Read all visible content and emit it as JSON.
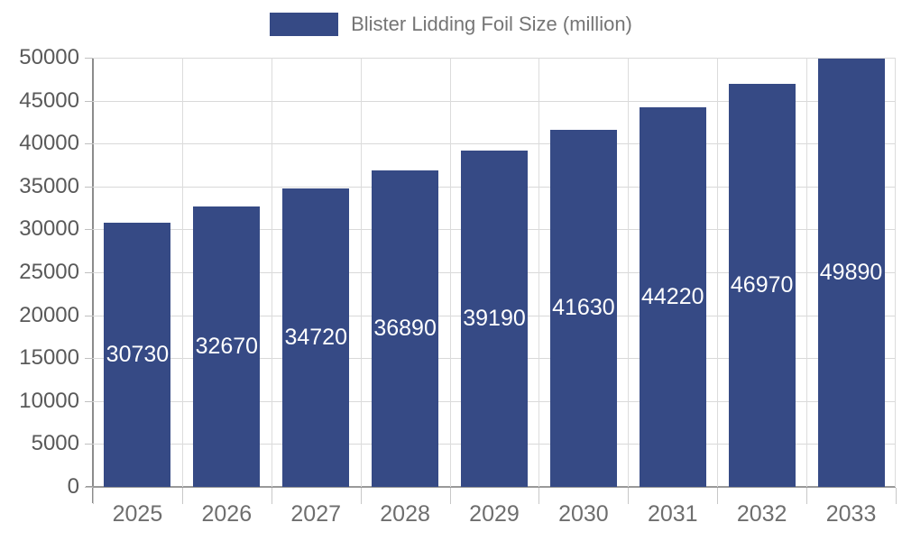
{
  "legend": {
    "label": "Blister Lidding Foil Size (million)"
  },
  "colors": {
    "bar": "#364A85",
    "value_label": "#ffffff",
    "grid": "#d9d9d9",
    "axis": "#8c8c8c",
    "tick_label": "#595959",
    "legend_text": "#757575",
    "background": "#ffffff"
  },
  "chart_data": {
    "type": "bar",
    "title": "",
    "xlabel": "",
    "ylabel": "",
    "categories": [
      "2025",
      "2026",
      "2027",
      "2028",
      "2029",
      "2030",
      "2031",
      "2032",
      "2033"
    ],
    "series": [
      {
        "name": "Blister Lidding Foil Size (million)",
        "values": [
          30730,
          32670,
          34720,
          36890,
          39190,
          41630,
          44220,
          46970,
          49890
        ]
      }
    ],
    "ylim": [
      0,
      50000
    ],
    "ytick_step": 5000,
    "ytick_labels": [
      "0",
      "5000",
      "10000",
      "15000",
      "20000",
      "25000",
      "30000",
      "35000",
      "40000",
      "45000",
      "50000"
    ],
    "grid": true,
    "legend_position": "top-center",
    "value_labels_inside_bars": true
  }
}
